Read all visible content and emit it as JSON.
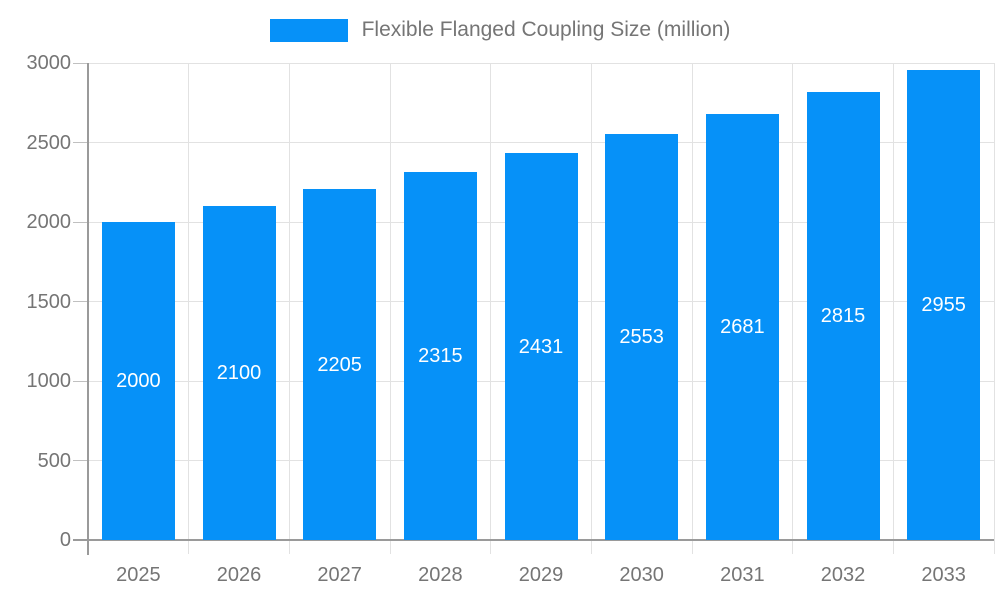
{
  "legend": {
    "label": "Flexible Flanged Coupling Size (million)"
  },
  "chart_data": {
    "type": "bar",
    "title": "Flexible Flanged Coupling Size (million)",
    "series_name": "Flexible Flanged Coupling Size (million)",
    "categories": [
      "2025",
      "2026",
      "2027",
      "2028",
      "2029",
      "2030",
      "2031",
      "2032",
      "2033"
    ],
    "values": [
      2000,
      2100,
      2205,
      2315,
      2431,
      2553,
      2681,
      2815,
      2955
    ],
    "bar_labels": [
      "2000",
      "2100",
      "2205",
      "2315",
      "2431",
      "2553",
      "2681",
      "2815",
      "2955"
    ],
    "xlabel": "",
    "ylabel": "",
    "ylim": [
      0,
      3000
    ],
    "y_ticks": [
      0,
      500,
      1000,
      1500,
      2000,
      2500,
      3000
    ],
    "grid": true,
    "legend_position": "top"
  },
  "colors": {
    "bar_fill": "#0691f8",
    "bar_value_text": "#ffffff",
    "axis_text": "#757575",
    "grid_line": "#e2e2e2",
    "tick_line": "#c0c0c0",
    "axis_line": "#9a9a9a",
    "background": "#ffffff"
  }
}
